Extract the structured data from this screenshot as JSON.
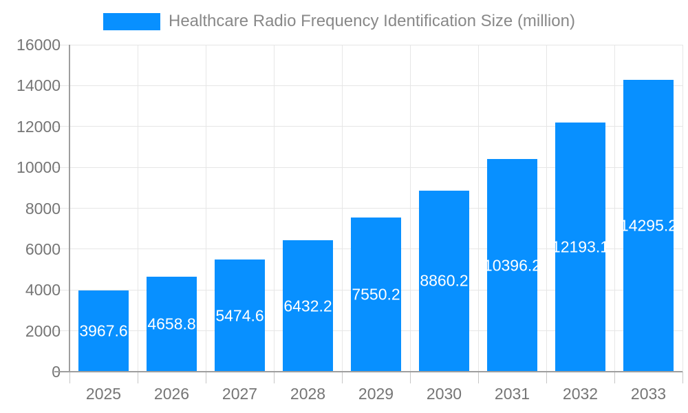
{
  "legend": {
    "label": "Healthcare Radio Frequency Identification Size (million)"
  },
  "chart_data": {
    "type": "bar",
    "title": "Healthcare Radio Frequency Identification Size (million)",
    "series_name": "Healthcare Radio Frequency Identification Size (million)",
    "categories": [
      "2025",
      "2026",
      "2027",
      "2028",
      "2029",
      "2030",
      "2031",
      "2032",
      "2033"
    ],
    "values": [
      3967.6,
      4658.8,
      5474.6,
      6432.2,
      7550.2,
      8860.2,
      10396.2,
      12193.1,
      14295.2
    ],
    "value_labels": [
      "3967.6",
      "4658.8",
      "5474.6",
      "6432.2",
      "7550.2",
      "8860.2",
      "10396.2",
      "12193.1",
      "14295.2"
    ],
    "xlabel": "",
    "ylabel": "",
    "ylim": [
      0,
      16000
    ],
    "ytick_step": 2000,
    "yticks": [
      0,
      2000,
      4000,
      6000,
      8000,
      10000,
      12000,
      14000,
      16000
    ],
    "grid": true,
    "legend_position": "top",
    "colors": {
      "bar": "#0890FF",
      "axis": "#9e9e9e",
      "gridline": "#e6e6e6",
      "category_tick": "#c6c6c6",
      "tick_label": "#757575",
      "legend_text": "#888888",
      "bar_label_text": "#ffffff",
      "background": "#ffffff"
    }
  }
}
